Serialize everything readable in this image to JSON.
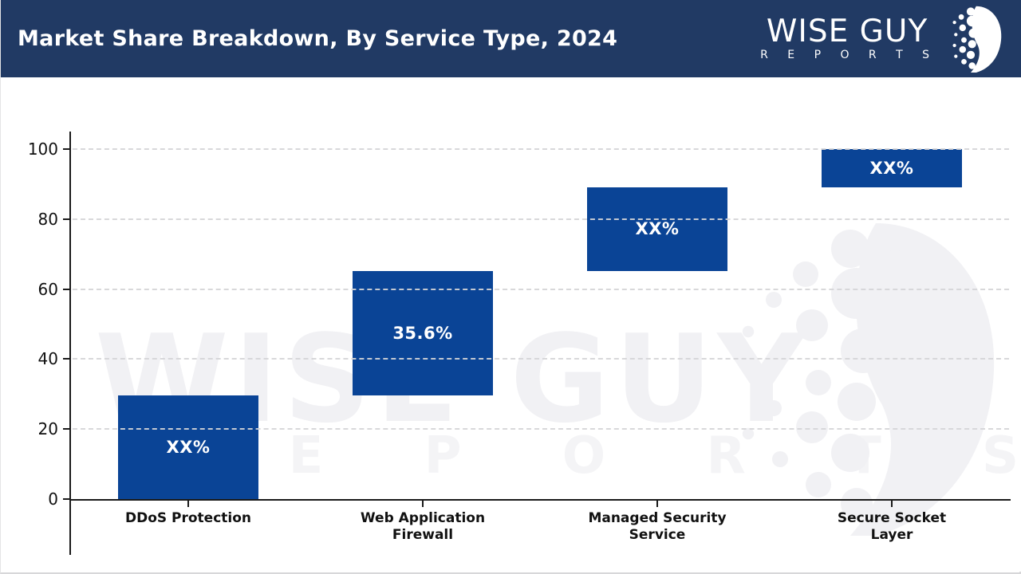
{
  "header": {
    "title": "Market Share Breakdown, By Service Type, 2024",
    "bg_color": "#213A64",
    "logo": {
      "line1": "WISE GUY",
      "line2": "R E P O R T S"
    }
  },
  "watermark": {
    "line1": "WISE GUY",
    "line2": "R E P O R T S"
  },
  "chart_data": {
    "type": "bar",
    "subtype": "waterfall-floating-bars",
    "title": "Market Share Breakdown, By Service Type, 2024",
    "categories": [
      "DDoS Protection",
      "Web Application\nFirewall",
      "Managed Security\nService",
      "Secure Socket\nLayer"
    ],
    "bars": [
      {
        "category": "DDoS Protection",
        "start": 0,
        "end": 29.6,
        "label": "XX%"
      },
      {
        "category": "Web Application Firewall",
        "start": 29.6,
        "end": 65.2,
        "label": "35.6%"
      },
      {
        "category": "Managed Security Service",
        "start": 65.2,
        "end": 89.1,
        "label": "XX%"
      },
      {
        "category": "Secure Socket Layer",
        "start": 89.1,
        "end": 100,
        "label": "XX%"
      }
    ],
    "y_ticks": [
      0,
      20,
      40,
      60,
      80,
      100
    ],
    "ylim": [
      0,
      105
    ],
    "xlabel": "",
    "ylabel": "",
    "grid": "horizontal-dashed",
    "grid_over_bars": true,
    "bar_color": "#0A4496",
    "bar_label_color": "#FFFFFF",
    "axis_color": "#1a1a1a",
    "gridline_color": "#d5d5d7",
    "legend": "none"
  }
}
